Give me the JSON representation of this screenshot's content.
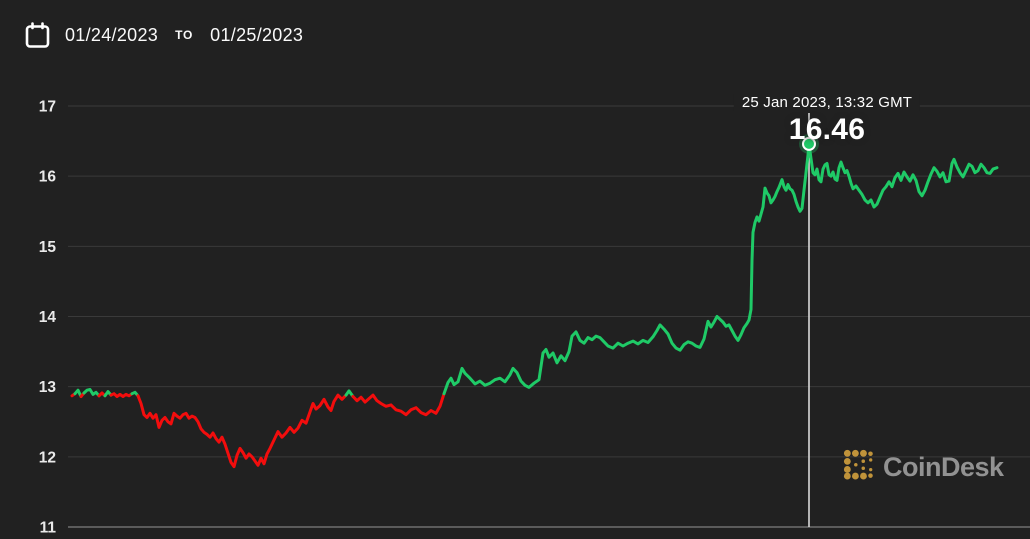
{
  "header": {
    "date_start": "01/24/2023",
    "date_separator": "TO",
    "date_end": "01/25/2023"
  },
  "tooltip": {
    "timestamp": "25 Jan 2023, 13:32 GMT",
    "value": "16.46"
  },
  "branding": {
    "name": "CoinDesk"
  },
  "chart_data": {
    "type": "line",
    "title": "",
    "xlabel": "",
    "ylabel": "",
    "x_range": [
      "01/24/2023",
      "01/25/2023"
    ],
    "ylim": [
      11,
      17
    ],
    "y_ticks": [
      11,
      12,
      13,
      14,
      15,
      16,
      17
    ],
    "grid": "horizontal",
    "legend": "none",
    "color_threshold": 12.92,
    "colors": {
      "up": "#1fca67",
      "down": "#f20d0d",
      "grid": "#3a3a3a",
      "axis_line": "#6f6f6f",
      "crosshair": "#d9d9d9",
      "tick_text": "#eaeaea",
      "background": "#212121",
      "brand_gold": "#c0933a",
      "brand_gray": "#929292"
    },
    "highlight": {
      "x": 809,
      "value": 16.46,
      "timestamp": "25 Jan 2023, 13:32 GMT"
    },
    "points": [
      [
        72,
        12.87
      ],
      [
        75,
        12.9
      ],
      [
        78,
        12.95
      ],
      [
        81,
        12.86
      ],
      [
        84,
        12.91
      ],
      [
        87,
        12.95
      ],
      [
        90,
        12.96
      ],
      [
        93,
        12.89
      ],
      [
        96,
        12.92
      ],
      [
        99,
        12.87
      ],
      [
        102,
        12.91
      ],
      [
        105,
        12.87
      ],
      [
        108,
        12.93
      ],
      [
        111,
        12.88
      ],
      [
        114,
        12.9
      ],
      [
        117,
        12.86
      ],
      [
        120,
        12.89
      ],
      [
        123,
        12.86
      ],
      [
        126,
        12.89
      ],
      [
        129,
        12.87
      ],
      [
        132,
        12.9
      ],
      [
        135,
        12.92
      ],
      [
        138,
        12.87
      ],
      [
        141,
        12.76
      ],
      [
        144,
        12.6
      ],
      [
        147,
        12.56
      ],
      [
        150,
        12.62
      ],
      [
        153,
        12.55
      ],
      [
        156,
        12.6
      ],
      [
        159,
        12.42
      ],
      [
        162,
        12.52
      ],
      [
        165,
        12.56
      ],
      [
        168,
        12.5
      ],
      [
        171,
        12.47
      ],
      [
        174,
        12.62
      ],
      [
        177,
        12.58
      ],
      [
        180,
        12.55
      ],
      [
        183,
        12.6
      ],
      [
        186,
        12.62
      ],
      [
        189,
        12.55
      ],
      [
        192,
        12.58
      ],
      [
        195,
        12.56
      ],
      [
        198,
        12.5
      ],
      [
        201,
        12.4
      ],
      [
        204,
        12.35
      ],
      [
        207,
        12.32
      ],
      [
        210,
        12.28
      ],
      [
        213,
        12.34
      ],
      [
        216,
        12.26
      ],
      [
        219,
        12.21
      ],
      [
        222,
        12.28
      ],
      [
        225,
        12.18
      ],
      [
        228,
        12.05
      ],
      [
        231,
        11.92
      ],
      [
        234,
        11.86
      ],
      [
        237,
        12.02
      ],
      [
        240,
        12.12
      ],
      [
        243,
        12.06
      ],
      [
        246,
        11.98
      ],
      [
        249,
        12.04
      ],
      [
        252,
        12.0
      ],
      [
        255,
        11.94
      ],
      [
        258,
        11.88
      ],
      [
        261,
        11.98
      ],
      [
        264,
        11.9
      ],
      [
        267,
        12.04
      ],
      [
        270,
        12.12
      ],
      [
        274,
        12.24
      ],
      [
        278,
        12.36
      ],
      [
        282,
        12.28
      ],
      [
        286,
        12.34
      ],
      [
        290,
        12.42
      ],
      [
        294,
        12.35
      ],
      [
        298,
        12.41
      ],
      [
        302,
        12.52
      ],
      [
        306,
        12.48
      ],
      [
        310,
        12.64
      ],
      [
        313,
        12.76
      ],
      [
        316,
        12.68
      ],
      [
        320,
        12.73
      ],
      [
        324,
        12.82
      ],
      [
        328,
        12.71
      ],
      [
        331,
        12.66
      ],
      [
        334,
        12.79
      ],
      [
        338,
        12.88
      ],
      [
        342,
        12.82
      ],
      [
        346,
        12.88
      ],
      [
        349,
        12.94
      ],
      [
        353,
        12.86
      ],
      [
        357,
        12.8
      ],
      [
        361,
        12.85
      ],
      [
        365,
        12.78
      ],
      [
        369,
        12.83
      ],
      [
        373,
        12.88
      ],
      [
        377,
        12.8
      ],
      [
        381,
        12.76
      ],
      [
        386,
        12.72
      ],
      [
        391,
        12.74
      ],
      [
        396,
        12.67
      ],
      [
        401,
        12.65
      ],
      [
        406,
        12.6
      ],
      [
        411,
        12.67
      ],
      [
        416,
        12.7
      ],
      [
        421,
        12.63
      ],
      [
        426,
        12.6
      ],
      [
        431,
        12.66
      ],
      [
        436,
        12.62
      ],
      [
        440,
        12.72
      ],
      [
        444,
        12.9
      ],
      [
        448,
        13.06
      ],
      [
        451,
        13.12
      ],
      [
        454,
        13.03
      ],
      [
        458,
        13.07
      ],
      [
        462,
        13.26
      ],
      [
        465,
        13.19
      ],
      [
        470,
        13.12
      ],
      [
        475,
        13.04
      ],
      [
        480,
        13.08
      ],
      [
        485,
        13.02
      ],
      [
        490,
        13.05
      ],
      [
        495,
        13.1
      ],
      [
        500,
        13.12
      ],
      [
        505,
        13.07
      ],
      [
        510,
        13.17
      ],
      [
        513,
        13.26
      ],
      [
        517,
        13.2
      ],
      [
        521,
        13.08
      ],
      [
        525,
        13.02
      ],
      [
        529,
        12.99
      ],
      [
        534,
        13.05
      ],
      [
        539,
        13.1
      ],
      [
        543,
        13.48
      ],
      [
        546,
        13.53
      ],
      [
        549,
        13.42
      ],
      [
        553,
        13.48
      ],
      [
        557,
        13.34
      ],
      [
        561,
        13.44
      ],
      [
        565,
        13.37
      ],
      [
        569,
        13.5
      ],
      [
        572,
        13.72
      ],
      [
        576,
        13.78
      ],
      [
        580,
        13.66
      ],
      [
        584,
        13.62
      ],
      [
        588,
        13.7
      ],
      [
        592,
        13.67
      ],
      [
        596,
        13.72
      ],
      [
        600,
        13.7
      ],
      [
        604,
        13.64
      ],
      [
        608,
        13.58
      ],
      [
        613,
        13.55
      ],
      [
        618,
        13.62
      ],
      [
        623,
        13.58
      ],
      [
        628,
        13.62
      ],
      [
        633,
        13.65
      ],
      [
        638,
        13.61
      ],
      [
        643,
        13.66
      ],
      [
        648,
        13.63
      ],
      [
        653,
        13.71
      ],
      [
        657,
        13.8
      ],
      [
        660,
        13.88
      ],
      [
        664,
        13.82
      ],
      [
        668,
        13.75
      ],
      [
        672,
        13.62
      ],
      [
        676,
        13.55
      ],
      [
        680,
        13.52
      ],
      [
        684,
        13.6
      ],
      [
        688,
        13.64
      ],
      [
        692,
        13.62
      ],
      [
        696,
        13.58
      ],
      [
        700,
        13.56
      ],
      [
        704,
        13.68
      ],
      [
        708,
        13.93
      ],
      [
        711,
        13.85
      ],
      [
        714,
        13.92
      ],
      [
        717,
        14.0
      ],
      [
        720,
        13.96
      ],
      [
        723,
        13.92
      ],
      [
        726,
        13.86
      ],
      [
        729,
        13.88
      ],
      [
        732,
        13.8
      ],
      [
        735,
        13.72
      ],
      [
        738,
        13.66
      ],
      [
        741,
        13.74
      ],
      [
        744,
        13.84
      ],
      [
        747,
        13.9
      ],
      [
        749,
        13.95
      ],
      [
        751,
        14.1
      ],
      [
        752,
        14.8
      ],
      [
        753,
        15.2
      ],
      [
        755,
        15.34
      ],
      [
        757,
        15.42
      ],
      [
        759,
        15.36
      ],
      [
        761,
        15.46
      ],
      [
        763,
        15.56
      ],
      [
        765,
        15.83
      ],
      [
        767,
        15.76
      ],
      [
        769,
        15.72
      ],
      [
        771,
        15.62
      ],
      [
        773,
        15.66
      ],
      [
        775,
        15.71
      ],
      [
        777,
        15.78
      ],
      [
        779,
        15.84
      ],
      [
        782,
        15.95
      ],
      [
        784,
        15.85
      ],
      [
        786,
        15.8
      ],
      [
        788,
        15.88
      ],
      [
        790,
        15.82
      ],
      [
        792,
        15.8
      ],
      [
        794,
        15.74
      ],
      [
        796,
        15.64
      ],
      [
        798,
        15.56
      ],
      [
        800,
        15.5
      ],
      [
        802,
        15.54
      ],
      [
        804,
        15.8
      ],
      [
        806,
        16.05
      ],
      [
        808,
        16.3
      ],
      [
        809,
        16.46
      ],
      [
        811,
        16.25
      ],
      [
        813,
        16.05
      ],
      [
        815,
        16.02
      ],
      [
        817,
        16.1
      ],
      [
        819,
        15.95
      ],
      [
        821,
        15.92
      ],
      [
        823,
        16.1
      ],
      [
        825,
        16.16
      ],
      [
        827,
        16.18
      ],
      [
        829,
        16.02
      ],
      [
        831,
        16.0
      ],
      [
        833,
        16.06
      ],
      [
        835,
        15.96
      ],
      [
        837,
        15.94
      ],
      [
        839,
        16.12
      ],
      [
        841,
        16.2
      ],
      [
        843,
        16.12
      ],
      [
        845,
        16.05
      ],
      [
        847,
        16.08
      ],
      [
        849,
        16.0
      ],
      [
        851,
        15.9
      ],
      [
        853,
        15.82
      ],
      [
        856,
        15.86
      ],
      [
        859,
        15.8
      ],
      [
        862,
        15.74
      ],
      [
        865,
        15.66
      ],
      [
        868,
        15.62
      ],
      [
        871,
        15.66
      ],
      [
        874,
        15.56
      ],
      [
        877,
        15.6
      ],
      [
        880,
        15.7
      ],
      [
        883,
        15.8
      ],
      [
        886,
        15.85
      ],
      [
        889,
        15.92
      ],
      [
        892,
        15.85
      ],
      [
        895,
        15.98
      ],
      [
        898,
        16.04
      ],
      [
        901,
        15.94
      ],
      [
        904,
        16.06
      ],
      [
        907,
        15.99
      ],
      [
        910,
        15.93
      ],
      [
        913,
        16.02
      ],
      [
        916,
        15.94
      ],
      [
        919,
        15.78
      ],
      [
        922,
        15.72
      ],
      [
        925,
        15.8
      ],
      [
        928,
        15.92
      ],
      [
        931,
        16.03
      ],
      [
        934,
        16.12
      ],
      [
        937,
        16.07
      ],
      [
        940,
        15.99
      ],
      [
        943,
        16.05
      ],
      [
        946,
        15.92
      ],
      [
        949,
        15.93
      ],
      [
        952,
        16.18
      ],
      [
        954,
        16.24
      ],
      [
        957,
        16.13
      ],
      [
        960,
        16.05
      ],
      [
        963,
        15.99
      ],
      [
        966,
        16.08
      ],
      [
        969,
        16.17
      ],
      [
        972,
        16.14
      ],
      [
        975,
        16.05
      ],
      [
        978,
        16.08
      ],
      [
        981,
        16.17
      ],
      [
        984,
        16.12
      ],
      [
        987,
        16.05
      ],
      [
        990,
        16.04
      ],
      [
        993,
        16.1
      ],
      [
        997,
        16.12
      ]
    ]
  }
}
